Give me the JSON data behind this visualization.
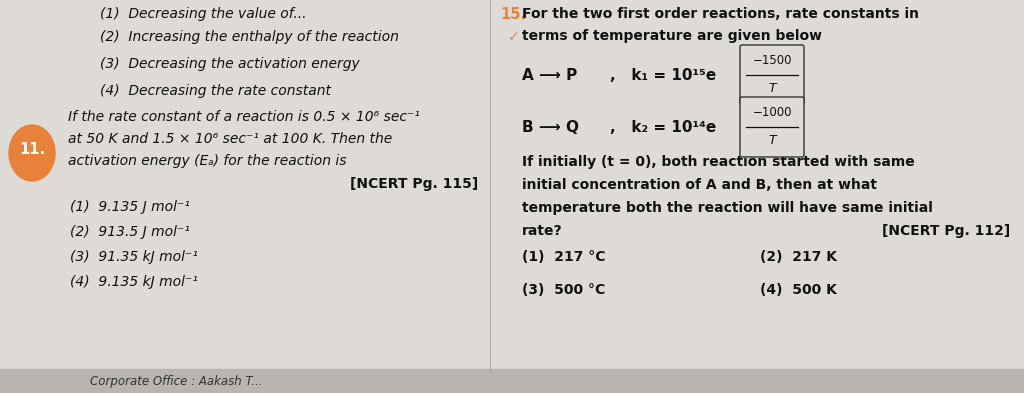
{
  "bg_color": "#dedad5",
  "footer_color": "#b8b4b0",
  "highlight_color": "#e8813a",
  "text_color": "#111111",
  "fig_width": 10.24,
  "fig_height": 3.93,
  "left": {
    "top_partial": "(1)  Decreasing the value of...",
    "opt2": "(2)  Increasing the enthalpy of the reaction",
    "opt3": "(3)  Decreasing the activation energy",
    "opt4": "(4)  Decreasing the rate constant",
    "q11_num": "11.",
    "q11_l1": "If the rate constant of a reaction is 0.5 × 10⁶ sec⁻¹",
    "q11_l2": "at 50 K and 1.5 × 10⁶ sec⁻¹ at 100 K. Then the",
    "q11_l3": "activation energy (Eₐ) for the reaction is",
    "ncert1": "[NCERT Pg. 115]",
    "a1": "(1)  9.135 J mol⁻¹",
    "a2": "(2)  913.5 J mol⁻¹",
    "a3": "(3)  91.35 kJ mol⁻¹",
    "a4": "(4)  9.135 kJ mol⁻¹",
    "footer": "Corporate Office : Aakash T..."
  },
  "right": {
    "q15_num": "15.",
    "q15_l1": "For the two first order reactions, rate constants in",
    "q15_l2": "terms of temperature are given below",
    "r1_lhs": "A ⟶ P",
    "r1_mid": ",   k₁ = 10¹⁵e",
    "r1_num": "−1500",
    "r1_den": "T",
    "r2_lhs": "B ⟶ Q",
    "r2_mid": ",   k₂ = 10¹⁴e",
    "r2_num": "−1000",
    "r2_den": "T",
    "body1": "If initially (t = 0), both reaction started with same",
    "body2": "initial concentration of A and B, then at what",
    "body3": "temperature both the reaction will have same initial",
    "body4": "rate?",
    "ncert2": "[NCERT Pg. 112]",
    "o1": "(1)  217 °C",
    "o2": "(2)  217 K",
    "o3": "(3)  500 °C",
    "o4": "(4)  500 K"
  }
}
